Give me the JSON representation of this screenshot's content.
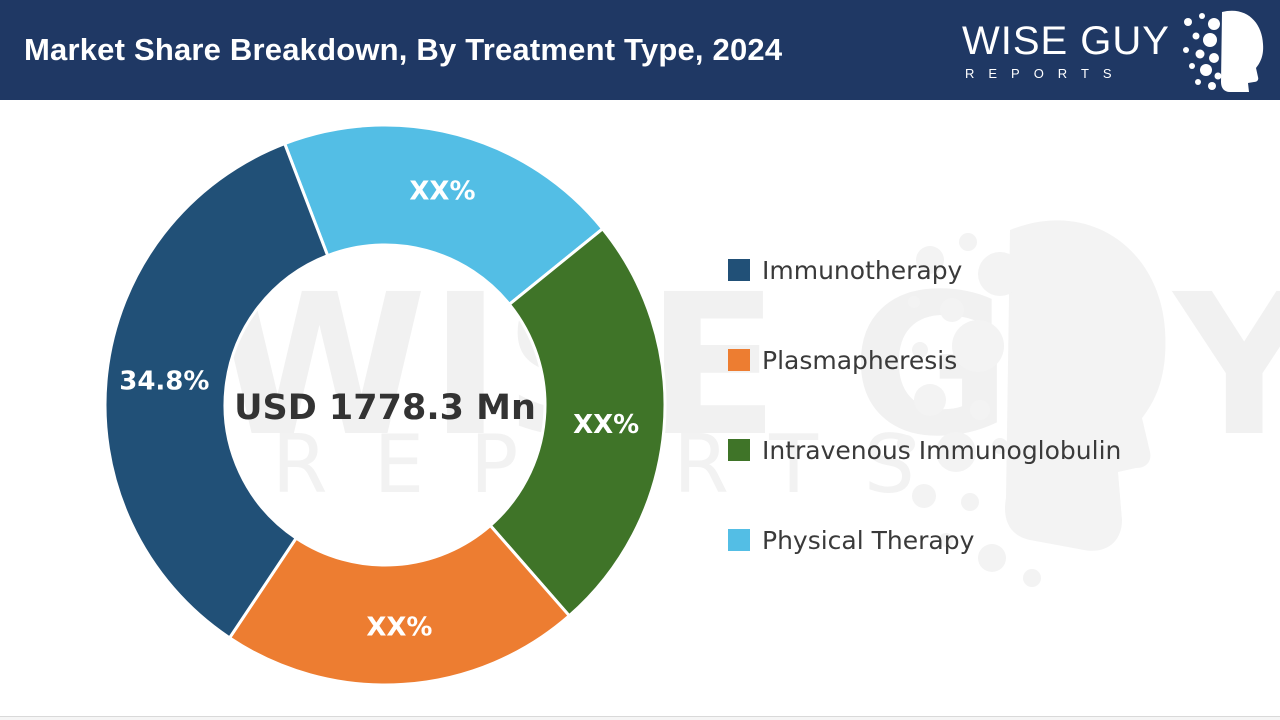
{
  "header": {
    "title": "Market Share Breakdown, By Treatment Type, 2024",
    "bg_color": "#1f3864",
    "logo": {
      "line1": "WISE GUY",
      "line2": "REPORTS"
    }
  },
  "watermark": {
    "line1": "WISE GUY",
    "line2": "REPORTS"
  },
  "chart_data": {
    "type": "pie",
    "donut": true,
    "title": "Market Share Breakdown, By Treatment Type, 2024",
    "center_label": "USD 1778.3 Mn",
    "start_angle_deg": -21,
    "direction_note": "slices listed in legend order; drawn counterclockwise from start angle (i.e. clockwise order is reversed list)",
    "slices": [
      {
        "name": "Immunotherapy",
        "display_label": "34.8%",
        "value_pct": 34.8,
        "color": "#215077"
      },
      {
        "name": "Plasmapheresis",
        "display_label": "XX%",
        "value_pct": 20.8,
        "color": "#ED7D31"
      },
      {
        "name": "Intravenous Immunoglobulin",
        "display_label": "XX%",
        "value_pct": 24.4,
        "color": "#3F7428"
      },
      {
        "name": "Physical Therapy",
        "display_label": "XX%",
        "value_pct": 20.0,
        "color": "#53BEE5"
      }
    ],
    "label_color": "#FFFFFF",
    "legend_position": "right"
  }
}
